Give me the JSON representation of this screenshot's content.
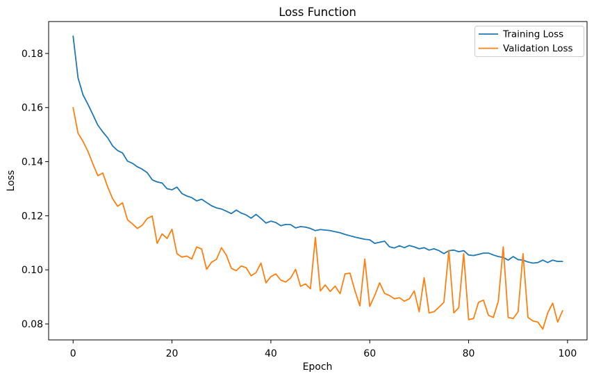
{
  "chart_data": {
    "type": "line",
    "title": "Loss Function",
    "xlabel": "Epoch",
    "ylabel": "Loss",
    "epochs": {
      "start": 0,
      "end": 99,
      "step": 1
    },
    "series": [
      {
        "name": "Training Loss",
        "color": "#1f77b4",
        "values": [
          0.1864,
          0.171,
          0.1647,
          0.1612,
          0.1574,
          0.1535,
          0.151,
          0.1488,
          0.1458,
          0.1441,
          0.1432,
          0.1402,
          0.1394,
          0.1381,
          0.1372,
          0.1359,
          0.1333,
          0.1325,
          0.1321,
          0.13,
          0.1296,
          0.1306,
          0.1282,
          0.1273,
          0.1267,
          0.1255,
          0.1261,
          0.1249,
          0.1237,
          0.1229,
          0.1225,
          0.1217,
          0.1208,
          0.1221,
          0.121,
          0.1203,
          0.1191,
          0.1205,
          0.119,
          0.1173,
          0.118,
          0.1175,
          0.1163,
          0.1168,
          0.1167,
          0.1155,
          0.116,
          0.1158,
          0.1153,
          0.1145,
          0.1149,
          0.1147,
          0.1145,
          0.1141,
          0.1137,
          0.1131,
          0.1126,
          0.1121,
          0.1117,
          0.1113,
          0.1111,
          0.1098,
          0.1102,
          0.1106,
          0.1085,
          0.1081,
          0.1089,
          0.1082,
          0.109,
          0.1085,
          0.1078,
          0.1082,
          0.1073,
          0.1078,
          0.1071,
          0.106,
          0.1071,
          0.1073,
          0.1067,
          0.1071,
          0.1055,
          0.1053,
          0.1057,
          0.1062,
          0.1062,
          0.1055,
          0.1049,
          0.1046,
          0.1036,
          0.1049,
          0.1038,
          0.1036,
          0.1029,
          0.1025,
          0.1027,
          0.1036,
          0.1027,
          0.1036,
          0.1031,
          0.1031
        ]
      },
      {
        "name": "Validation Loss",
        "color": "#ff7f0e",
        "values": [
          0.16,
          0.1505,
          0.1475,
          0.1438,
          0.1392,
          0.1348,
          0.1358,
          0.1306,
          0.1263,
          0.1235,
          0.1248,
          0.1185,
          0.117,
          0.1153,
          0.1165,
          0.119,
          0.1199,
          0.1098,
          0.1133,
          0.1116,
          0.115,
          0.106,
          0.1047,
          0.1051,
          0.104,
          0.1085,
          0.1077,
          0.1002,
          0.1028,
          0.1039,
          0.1082,
          0.1054,
          0.1006,
          0.0997,
          0.1014,
          0.1008,
          0.0978,
          0.099,
          0.1025,
          0.0952,
          0.0975,
          0.0985,
          0.0962,
          0.0955,
          0.097,
          0.1002,
          0.0939,
          0.0948,
          0.093,
          0.112,
          0.0922,
          0.0944,
          0.092,
          0.094,
          0.0912,
          0.0985,
          0.0988,
          0.0923,
          0.0867,
          0.104,
          0.0865,
          0.0905,
          0.0952,
          0.0913,
          0.0905,
          0.0893,
          0.0897,
          0.0884,
          0.0893,
          0.0922,
          0.0845,
          0.0971,
          0.0841,
          0.0845,
          0.0862,
          0.088,
          0.1072,
          0.0841,
          0.086,
          0.106,
          0.0816,
          0.082,
          0.088,
          0.0888,
          0.0832,
          0.0824,
          0.0884,
          0.1085,
          0.0824,
          0.082,
          0.0845,
          0.106,
          0.0824,
          0.0811,
          0.0807,
          0.0781,
          0.0841,
          0.0877,
          0.0807,
          0.0849
        ]
      }
    ],
    "xlim": [
      -4.95,
      103.95
    ],
    "ylim": [
      0.0741,
      0.1918
    ],
    "xticks": [
      0,
      20,
      40,
      60,
      80,
      100
    ],
    "xtick_labels": [
      "0",
      "20",
      "40",
      "60",
      "80",
      "100"
    ],
    "yticks": [
      0.08,
      0.1,
      0.12,
      0.14,
      0.16,
      0.18
    ],
    "ytick_labels": [
      "0.08",
      "0.10",
      "0.12",
      "0.14",
      "0.16",
      "0.18"
    ],
    "grid": false,
    "legend": {
      "position": "upper right",
      "entries": [
        "Training Loss",
        "Validation Loss"
      ]
    },
    "colors": {
      "background": "#ffffff",
      "spine": "#000000",
      "legend_border": "#cccccc"
    }
  }
}
